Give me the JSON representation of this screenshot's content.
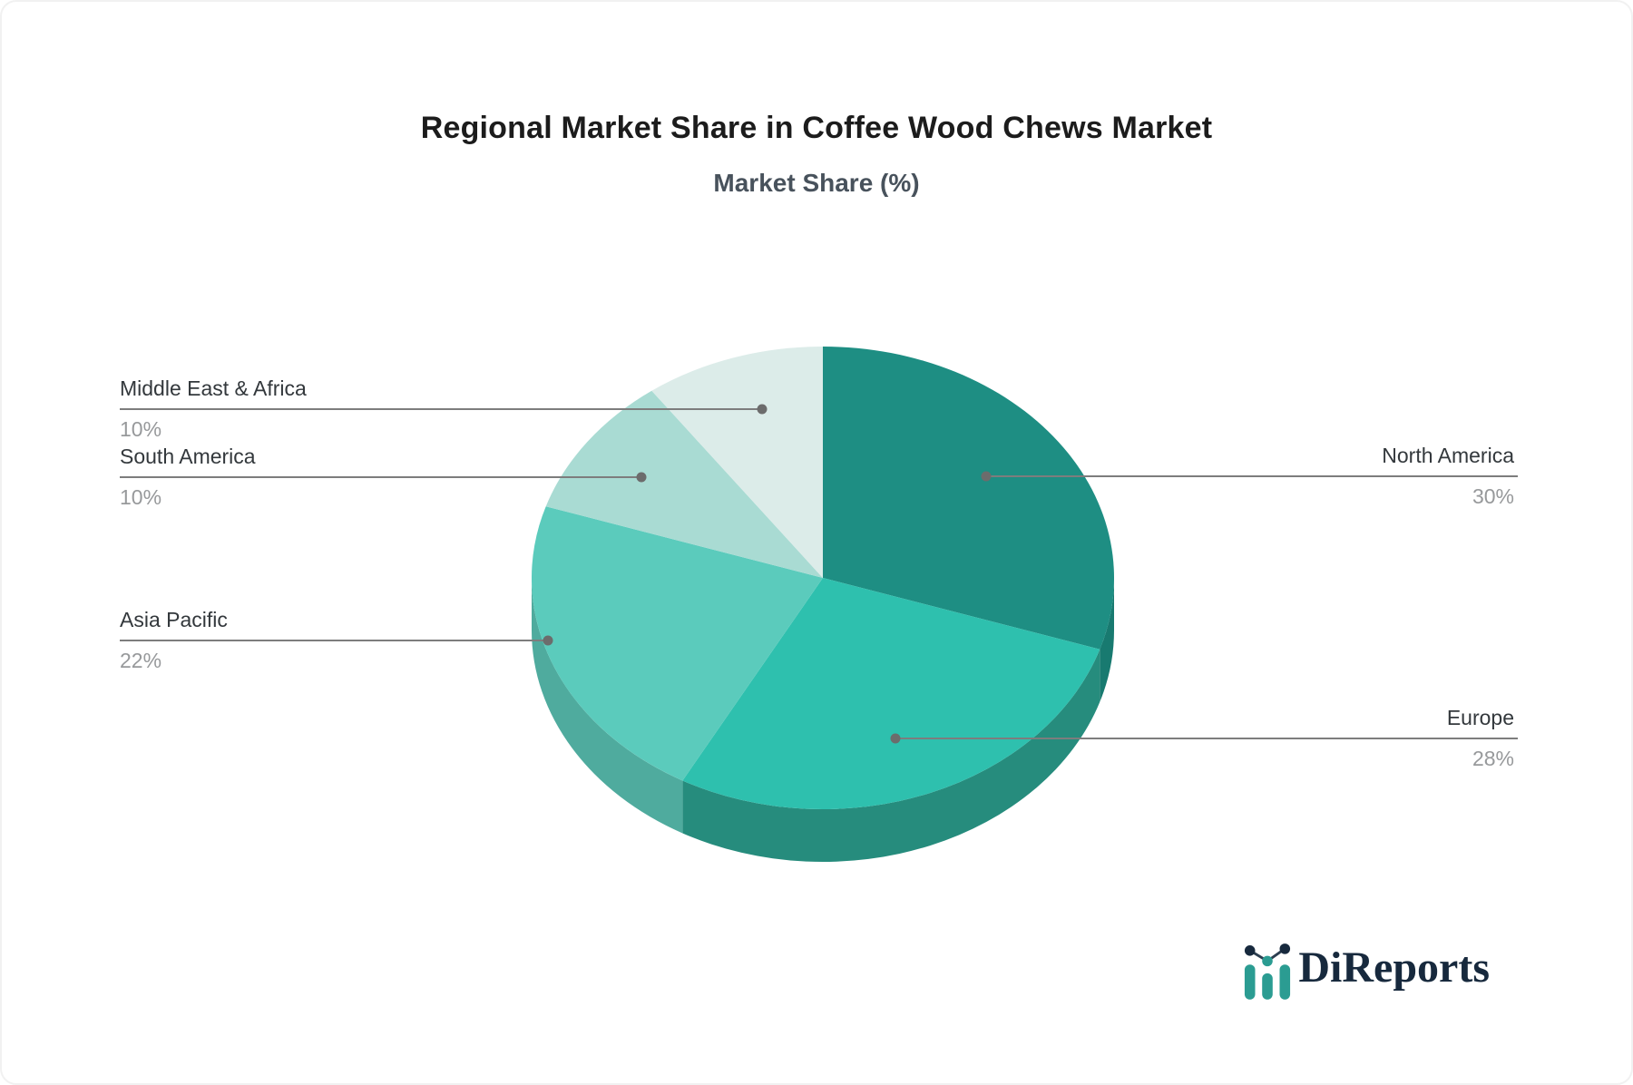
{
  "header": {
    "title": "Regional Market Share in Coffee Wood Chews Market",
    "subtitle": "Market Share (%)"
  },
  "logo": {
    "text": "DiReports",
    "navy_color": "#17293d",
    "teal_color": "#2b9c92"
  },
  "chart_data": {
    "type": "pie",
    "style": "3d",
    "title": "Regional Market Share in Coffee Wood Chews Market",
    "subtitle": "Market Share (%)",
    "unit": "%",
    "start_angle": "12-oclock",
    "direction": "clockwise",
    "legend_position": "callout-labels",
    "categories": [
      "North America",
      "Europe",
      "Asia Pacific",
      "South America",
      "Middle East & Africa"
    ],
    "values": [
      30,
      28,
      22,
      10,
      10
    ],
    "value_labels": [
      "30%",
      "28%",
      "22%",
      "10%",
      "10%"
    ],
    "colors": [
      "#1e8e83",
      "#2ec0ae",
      "#5bcbbc",
      "#a9dbd3",
      "#dcece9"
    ],
    "side_colors": [
      "#187a70",
      "#268c7d",
      "#4fab9e",
      "#8fbcb4",
      "#bccfcb"
    ],
    "connector_color": "#7d7d7d",
    "label_color": "#33383c",
    "pct_color": "#97999b"
  }
}
